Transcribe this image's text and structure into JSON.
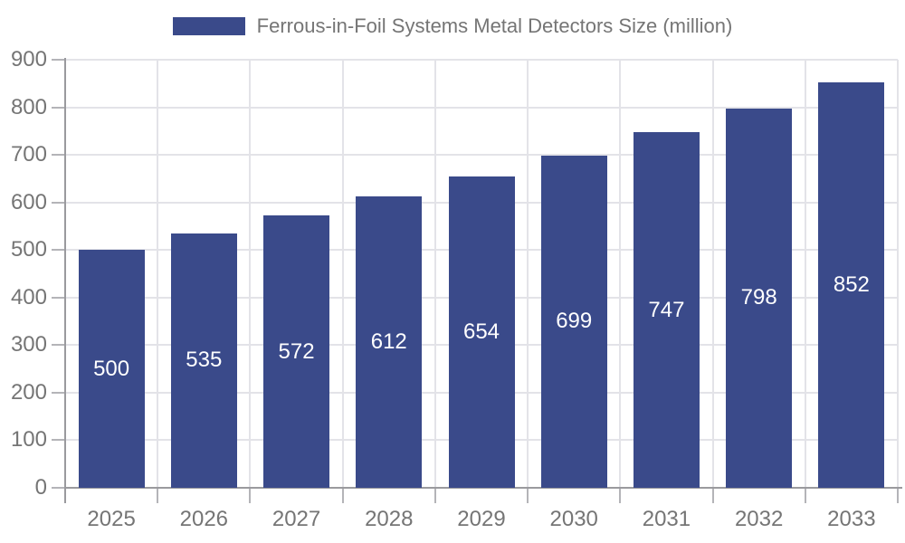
{
  "chart_data": {
    "type": "bar",
    "title": "Ferrous-in-Foil Systems Metal Detectors Size (million)",
    "categories": [
      "2025",
      "2026",
      "2027",
      "2028",
      "2029",
      "2030",
      "2031",
      "2032",
      "2033"
    ],
    "values": [
      500,
      535,
      572,
      612,
      654,
      699,
      747,
      798,
      852
    ],
    "xlabel": "",
    "ylabel": "",
    "ylim": [
      0,
      900
    ],
    "yticks": [
      0,
      100,
      200,
      300,
      400,
      500,
      600,
      700,
      800,
      900
    ],
    "grid": true,
    "legend_position": "top-center",
    "value_labels": "inside-center",
    "colors": {
      "bar": "#3A4A8A",
      "value_label": "#FFFFFF",
      "tick_label": "#757575",
      "legend_text": "#757575",
      "gridline": "#E3E3E8",
      "axis_line": "#9A9A9E",
      "tick_mark": "#B4B4B8",
      "background": "#FFFFFF"
    }
  }
}
